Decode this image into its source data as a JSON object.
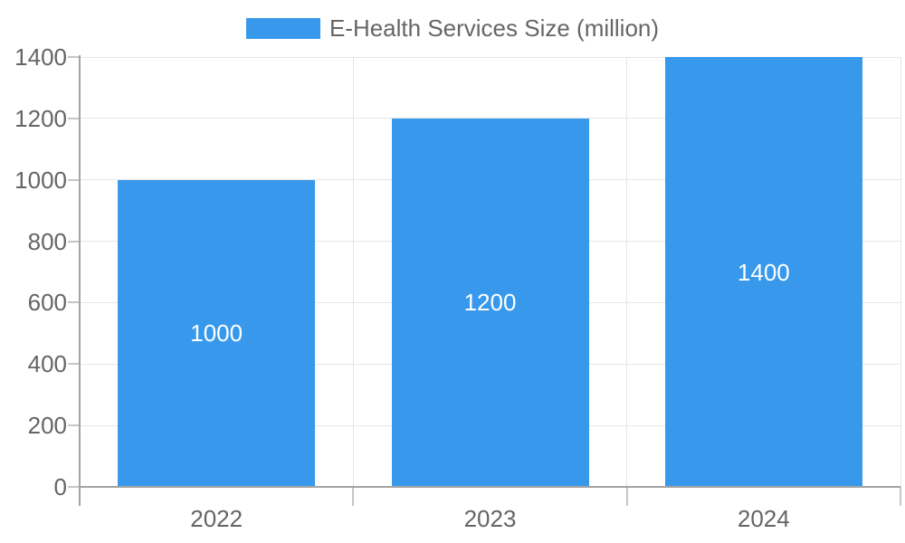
{
  "chart_data": {
    "type": "bar",
    "title": "",
    "legend": {
      "label": "E-Health Services Size (million)",
      "position": "top"
    },
    "categories": [
      "2022",
      "2023",
      "2024"
    ],
    "series": [
      {
        "name": "E-Health Services Size (million)",
        "values": [
          1000,
          1200,
          1400
        ]
      }
    ],
    "bar_value_labels": [
      "1000",
      "1200",
      "1400"
    ],
    "xlabel": "",
    "ylabel": "",
    "ylim": [
      0,
      1400
    ],
    "yticks": [
      0,
      200,
      400,
      600,
      800,
      1000,
      1200,
      1400
    ],
    "ytick_labels": [
      "0",
      "200",
      "400",
      "600",
      "800",
      "1000",
      "1200",
      "1400"
    ],
    "grid": true,
    "colors": {
      "bar": "#3899ec",
      "grid": "#e6e6e6",
      "axis": "#a3a3a3",
      "tick": "#c6c6c6",
      "axis_text": "#656565",
      "legend_text": "#666666",
      "bar_label_text": "#ffffff",
      "background": "#ffffff"
    }
  }
}
